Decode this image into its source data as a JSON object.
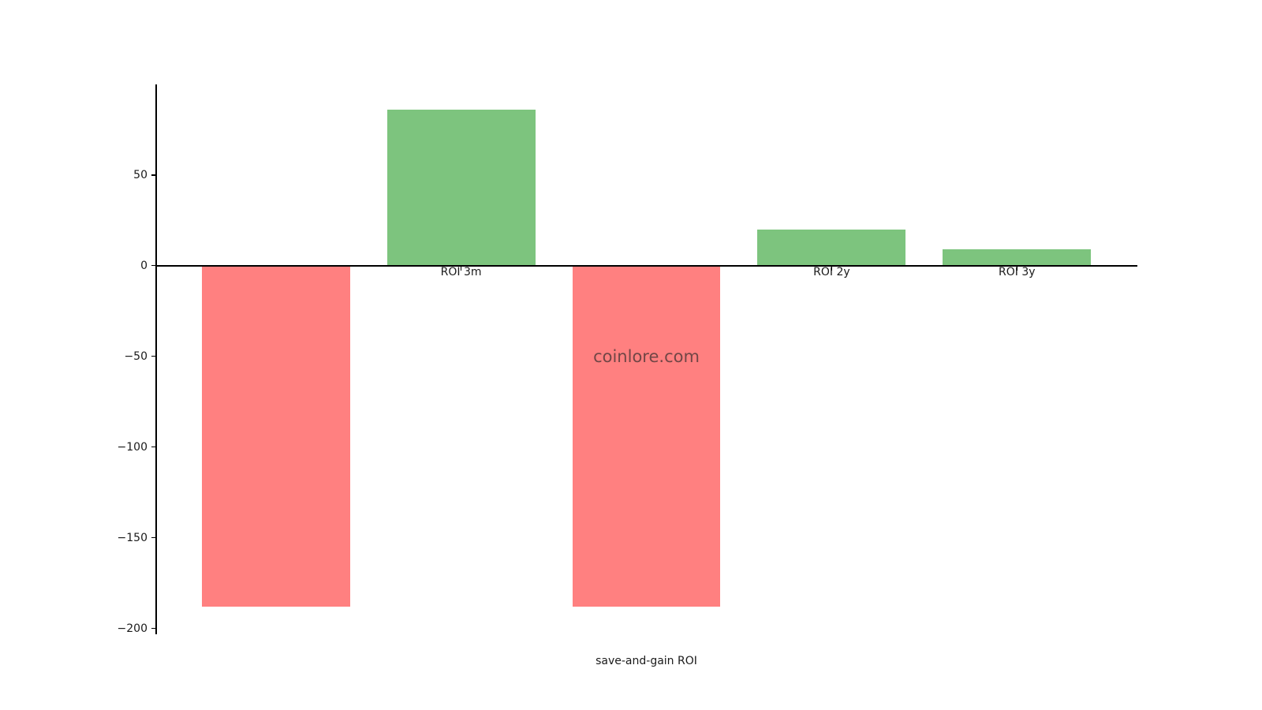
{
  "page": {
    "background_color": "#ffffff"
  },
  "chart_data": {
    "type": "bar",
    "title": "",
    "xlabel": "save-and-gain ROI",
    "ylabel": "",
    "categories": [
      "",
      "ROI 3m",
      "",
      "ROI 2y",
      "ROI 3y"
    ],
    "values": [
      -188,
      86,
      -188,
      20,
      9
    ],
    "series": [
      {
        "name": "ROI",
        "values": [
          -188,
          86,
          -188,
          20,
          9
        ]
      }
    ],
    "positive_color": "#7dc47e",
    "negative_color": "#ff8080",
    "axis_color": "#000000",
    "text_color": "#1a1a1a",
    "ylim": [
      -201.5,
      100
    ],
    "yticks": [
      {
        "value": 50,
        "label": "50"
      },
      {
        "value": 0,
        "label": "0"
      },
      {
        "value": -50,
        "label": "−50"
      },
      {
        "value": -100,
        "label": "−100"
      },
      {
        "value": -150,
        "label": "−150"
      },
      {
        "value": -200,
        "label": "−200"
      }
    ],
    "grid": false,
    "legend": null,
    "watermark": "coinlore.com"
  }
}
